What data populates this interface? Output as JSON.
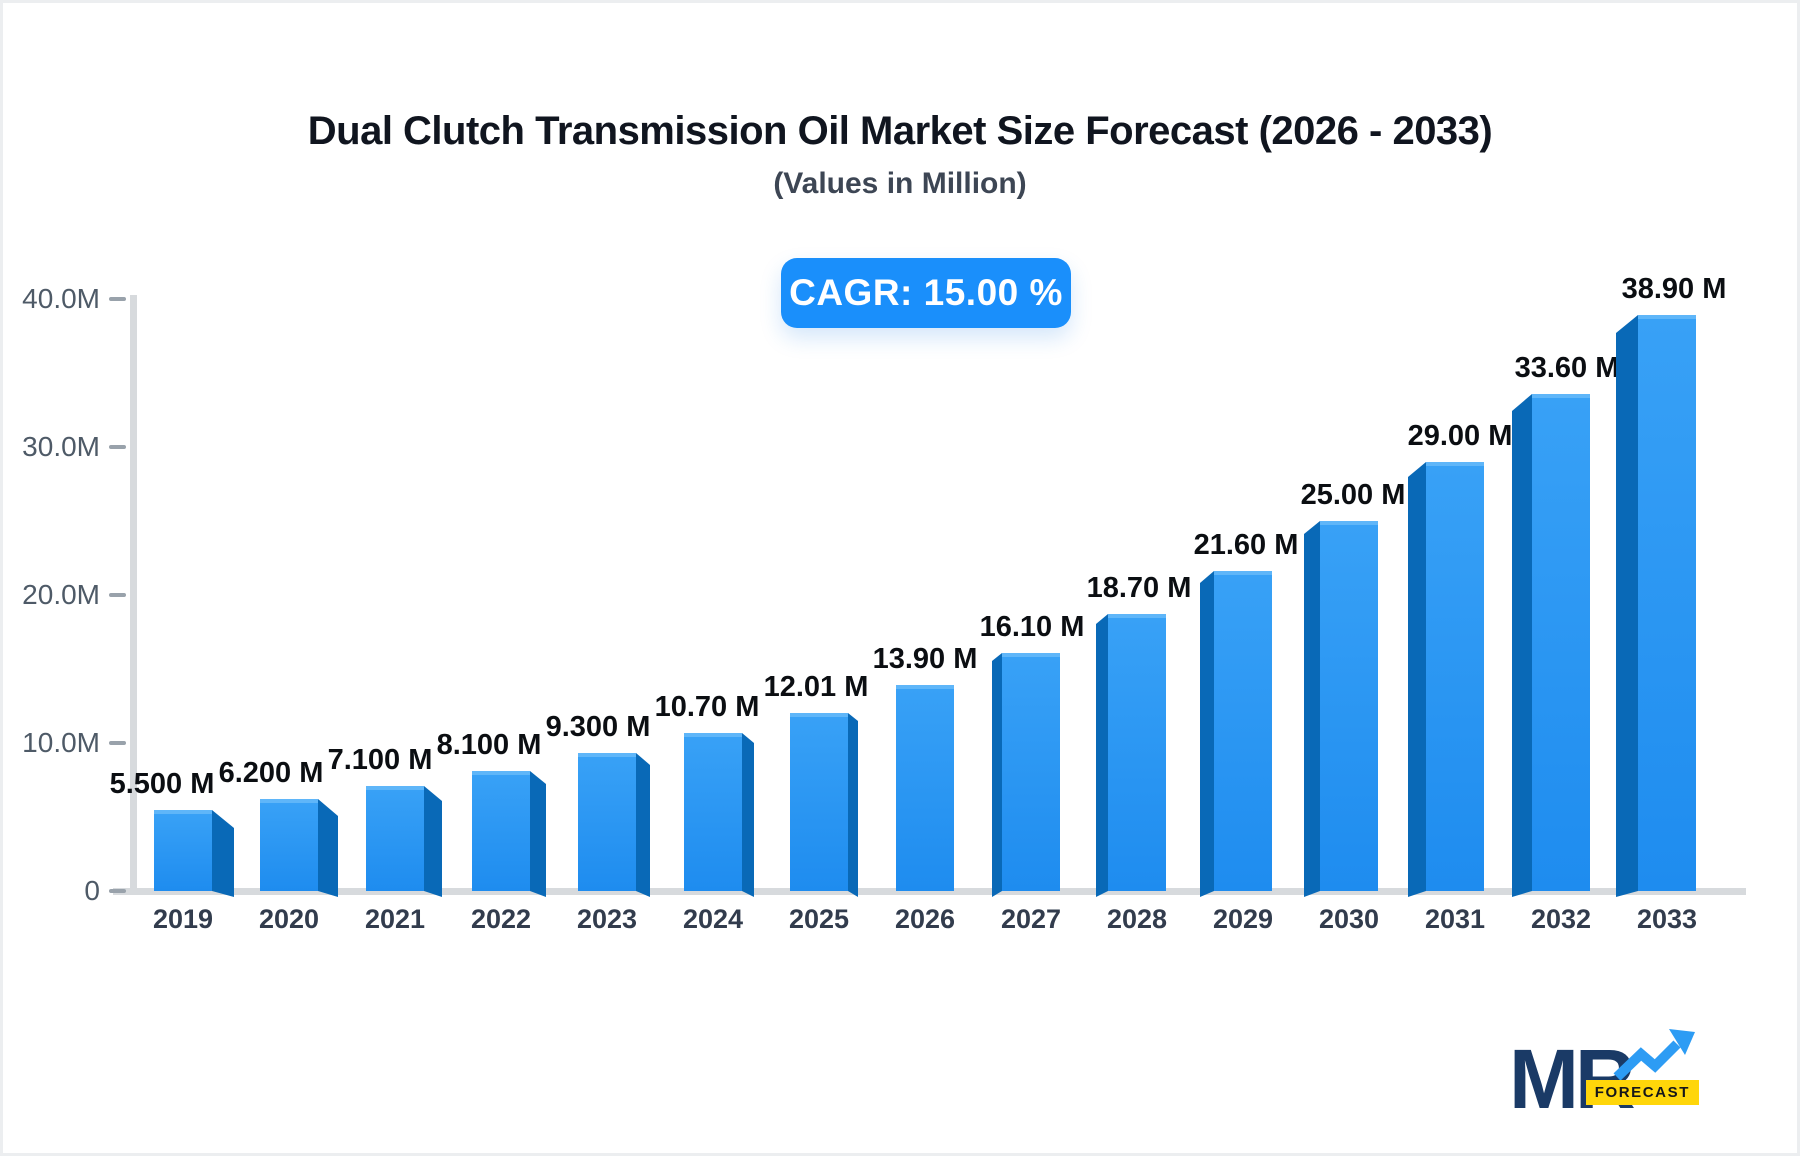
{
  "header": {
    "title": "Dual Clutch Transmission Oil Market Size Forecast (2026 - 2033)",
    "subtitle": "(Values in Million)",
    "cagr_label": "CAGR: 15.00 %"
  },
  "chart_data": {
    "type": "bar",
    "title": "Dual Clutch Transmission Oil Market Size Forecast (2026 - 2033)",
    "subtitle": "(Values in Million)",
    "unit": "Million",
    "cagr_percent": 15.0,
    "categories": [
      "2019",
      "2020",
      "2021",
      "2022",
      "2023",
      "2024",
      "2025",
      "2026",
      "2027",
      "2028",
      "2029",
      "2030",
      "2031",
      "2032",
      "2033"
    ],
    "values": [
      5.5,
      6.2,
      7.1,
      8.1,
      9.3,
      10.7,
      12.01,
      13.9,
      16.1,
      18.7,
      21.6,
      25.0,
      29.0,
      33.6,
      38.9
    ],
    "value_labels": [
      "5.500 M",
      "6.200 M",
      "7.100 M",
      "8.100 M",
      "9.300 M",
      "10.70 M",
      "12.01 M",
      "13.90 M",
      "16.10 M",
      "18.70 M",
      "21.60 M",
      "25.00 M",
      "29.00 M",
      "33.60 M",
      "38.90 M"
    ],
    "xlabel": "",
    "ylabel": "",
    "ylim": [
      0,
      40
    ],
    "y_ticks": [
      {
        "value": 0,
        "label": "0"
      },
      {
        "value": 10,
        "label": "10.0M"
      },
      {
        "value": 20,
        "label": "20.0M"
      },
      {
        "value": 30,
        "label": "30.0M"
      },
      {
        "value": 40,
        "label": "40.0M"
      }
    ],
    "grid": false,
    "legend": false,
    "bar_style": "3d-perspective"
  },
  "colors": {
    "bar_face_top": "#38A1F6",
    "bar_face_bottom": "#1E8CEF",
    "bar_highlight": "#5FB6F9",
    "bar_side": "#0969B7",
    "axis": "#D7DADD",
    "badge_bg": "#1A8FFB",
    "logo_navy": "#1A3A66",
    "logo_arrow_blue": "#2D9CF4",
    "logo_yellow": "#FFD60A"
  },
  "logo": {
    "text": "MR",
    "badge": "FORECAST"
  }
}
